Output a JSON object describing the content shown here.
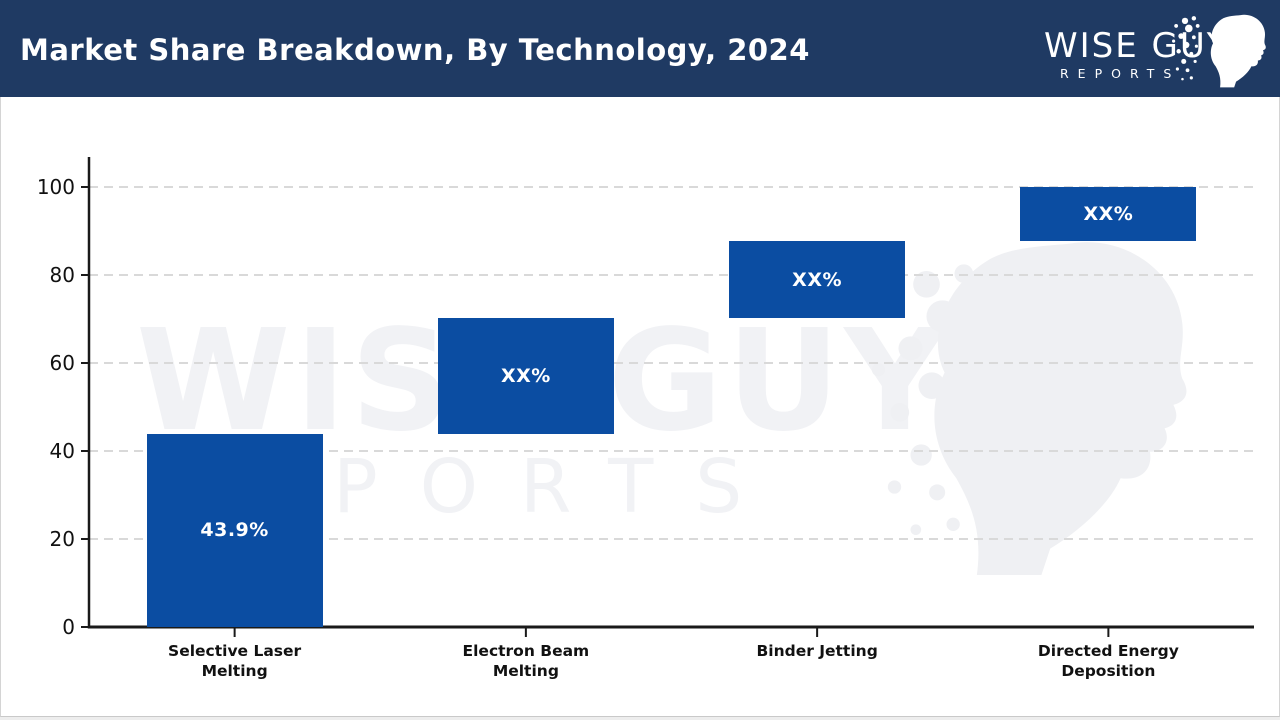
{
  "header": {
    "title": "Market Share Breakdown, By Technology, 2024",
    "background_color": "#1f3a63",
    "logo": {
      "wordmark": "WISE GUY",
      "tagline": "REPORTS"
    }
  },
  "watermark": {
    "wordmark": "WISE GUY",
    "tagline": "REPORTS"
  },
  "chart_data": {
    "type": "bar",
    "subtype": "waterfall",
    "title": "Market Share Breakdown, By Technology, 2024",
    "categories": [
      "Selective Laser Melting",
      "Electron Beam Melting",
      "Binder Jetting",
      "Directed Energy Deposition"
    ],
    "category_label_lines": [
      [
        "Selective Laser",
        "Melting"
      ],
      [
        "Electron Beam",
        "Melting"
      ],
      [
        "Binder Jetting"
      ],
      [
        "Directed Energy",
        "Deposition"
      ]
    ],
    "segments": [
      {
        "category": "Selective Laser Melting",
        "start": 0,
        "end": 43.9,
        "value": 43.9,
        "label": "43.9%"
      },
      {
        "category": "Electron Beam Melting",
        "start": 43.9,
        "end": 70.2,
        "value": 26.3,
        "label": "XX%"
      },
      {
        "category": "Binder Jetting",
        "start": 70.2,
        "end": 87.7,
        "value": 17.5,
        "label": "XX%"
      },
      {
        "category": "Directed Energy Deposition",
        "start": 87.7,
        "end": 100,
        "value": 12.3,
        "label": "XX%"
      }
    ],
    "y_ticks": [
      0,
      20,
      40,
      60,
      80,
      100
    ],
    "ylim": [
      0,
      100
    ],
    "xlabel": "",
    "ylabel": "",
    "legend": "none",
    "grid": "horizontal-dashed",
    "bar_color": "#0b4da2",
    "bar_label_color": "#ffffff",
    "axis_color": "#1a1a1a",
    "gridline_color": "#d9d9d9",
    "watermark_color": "#f0f1f4"
  }
}
